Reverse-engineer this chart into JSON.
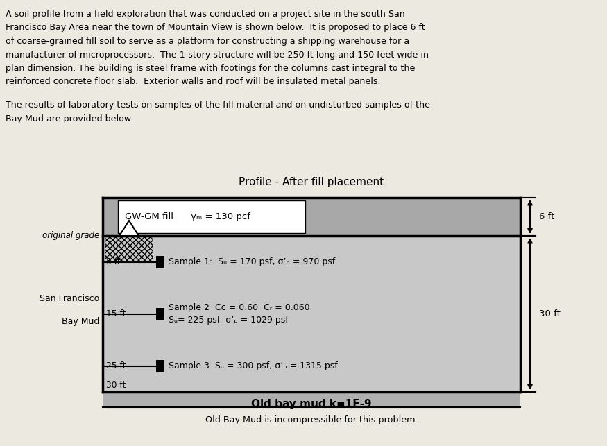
{
  "bg_color": "#ece9e0",
  "fill_color": "#a8a8a8",
  "mud_color": "#c8c8c8",
  "bottom_mud_color": "#b0b0b0",
  "black": "#000000",
  "white": "#ffffff",
  "paragraph1_lines": [
    "A soil profile from a field exploration that was conducted on a project site in the south San",
    "Francisco Bay Area near the town of Mountain View is shown below.  It is proposed to place 6 ft",
    "of coarse-grained fill soil to serve as a platform for constructing a shipping warehouse for a",
    "manufacturer of microprocessors.  The 1-story structure will be 250 ft long and 150 feet wide in",
    "plan dimension. The building is steel frame with footings for the columns cast integral to the",
    "reinforced concrete floor slab.  Exterior walls and roof will be insulated metal panels."
  ],
  "paragraph2_lines": [
    "The results of laboratory tests on samples of the fill material and on undisturbed samples of the",
    "Bay Mud are provided below."
  ],
  "profile_title": "Profile - After fill placement",
  "fill_label": "GW-GM fill",
  "fill_gamma": "γₘ = 130 pcf",
  "label_6ft": "6 ft",
  "label_30ft": "30 ft",
  "original_grade_label": "original grade",
  "sf_bay_mud_label1": "San Francisco",
  "sf_bay_mud_label2": "Bay Mud",
  "sample1_depth_label": "5 ft",
  "sample1_text": "Sample 1:  Sᵤ = 170 psf, σ’ₚ = 970 psf",
  "sample2_depth_label": "15 ft",
  "sample2_line1": "Sample 2  Cᴄ = 0.60  Cᵣ = 0.060",
  "sample2_line2": "Sᵤ= 225 psf  σ’ₚ = 1029 psf",
  "sample3_depth_label": "25 ft",
  "sample3_text": "Sample 3  Sᵤ = 300 psf, σ’ₚ = 1315 psf",
  "depth_30ft_label": "30 ft",
  "bottom_label1": "Old bay mud k=1E-9",
  "bottom_label2": "Old Bay Mud is incompressible for this problem.",
  "fig_width": 8.75,
  "fig_height": 6.43,
  "dpi": 100
}
